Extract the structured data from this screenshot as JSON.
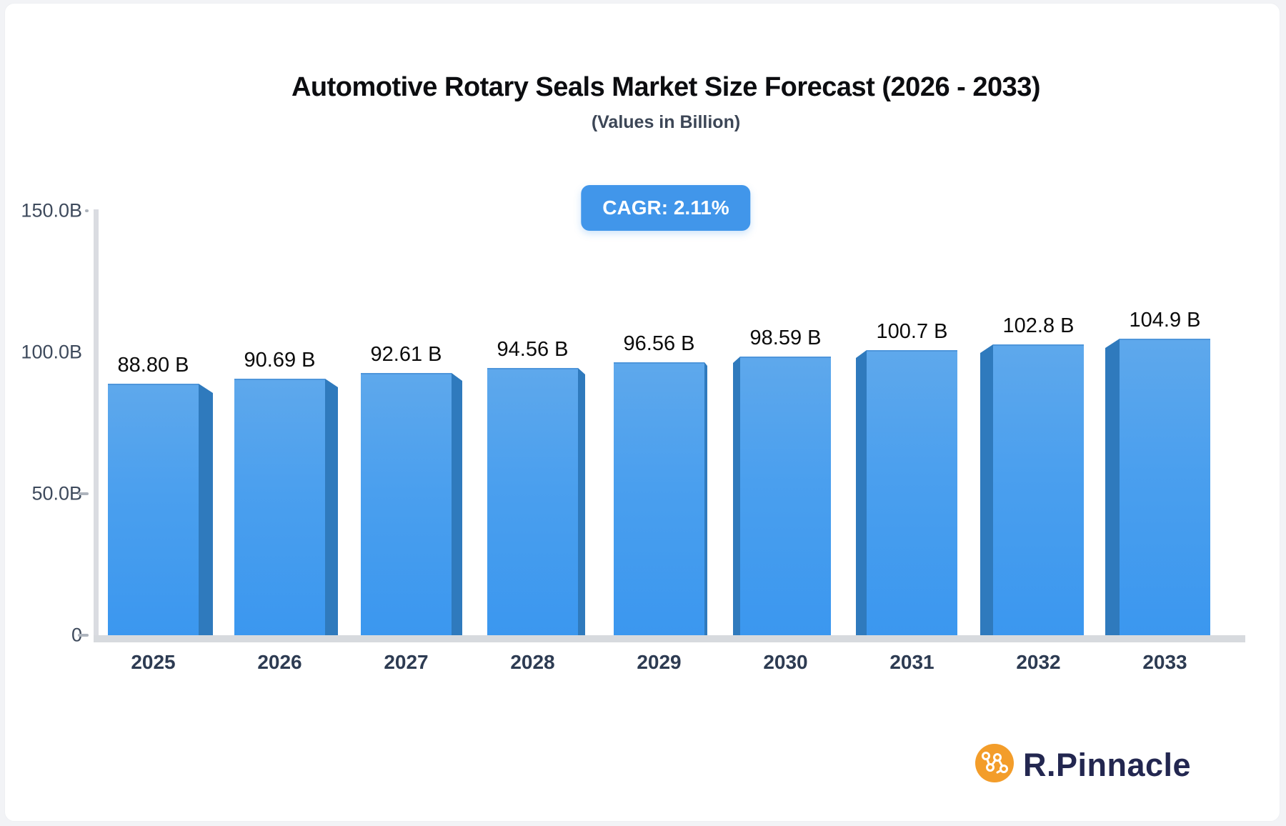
{
  "header": {
    "title": "Automotive Rotary Seals Market Size Forecast (2026 - 2033)",
    "subtitle": "(Values in Billion)",
    "cagr_label": "CAGR: 2.11%"
  },
  "chart_data": {
    "type": "bar",
    "title": "Automotive Rotary Seals Market Size Forecast (2026 - 2033)",
    "subtitle": "(Values in Billion)",
    "cagr_percent": 2.11,
    "categories": [
      "2025",
      "2026",
      "2027",
      "2028",
      "2029",
      "2030",
      "2031",
      "2032",
      "2033"
    ],
    "values": [
      88.8,
      90.69,
      92.61,
      94.56,
      96.56,
      98.59,
      100.7,
      102.8,
      104.9
    ],
    "value_labels": [
      "88.80 B",
      "90.69 B",
      "92.61 B",
      "94.56 B",
      "96.56 B",
      "98.59 B",
      "100.7 B",
      "102.8 B",
      "104.9 B"
    ],
    "unit": "B",
    "xlabel": "",
    "ylabel": "",
    "ylim": [
      0,
      150
    ],
    "y_ticks": [
      {
        "label": "150.0B",
        "value": 150
      },
      {
        "label": "100.0B",
        "value": 100
      },
      {
        "label": "50.0B",
        "value": 50
      },
      {
        "label": "0",
        "value": 0
      }
    ],
    "grid": false,
    "legend": false,
    "bar_style": "3d-bevel"
  },
  "colors": {
    "bar_face_top": "#5ea8ec",
    "bar_face_bottom": "#3b97ef",
    "bar_side_dark": "#2f7abd",
    "badge_bg": "#4196ea",
    "badge_text": "#ffffff",
    "axis_gray": "#dadce1",
    "title_text": "#0c0d10",
    "tick_text": "#3e4a5c",
    "logo_orange": "#f39d2a",
    "logo_navy": "#232750"
  },
  "branding": {
    "name": "R.Pinnacle",
    "icon": "network-graph-icon"
  }
}
